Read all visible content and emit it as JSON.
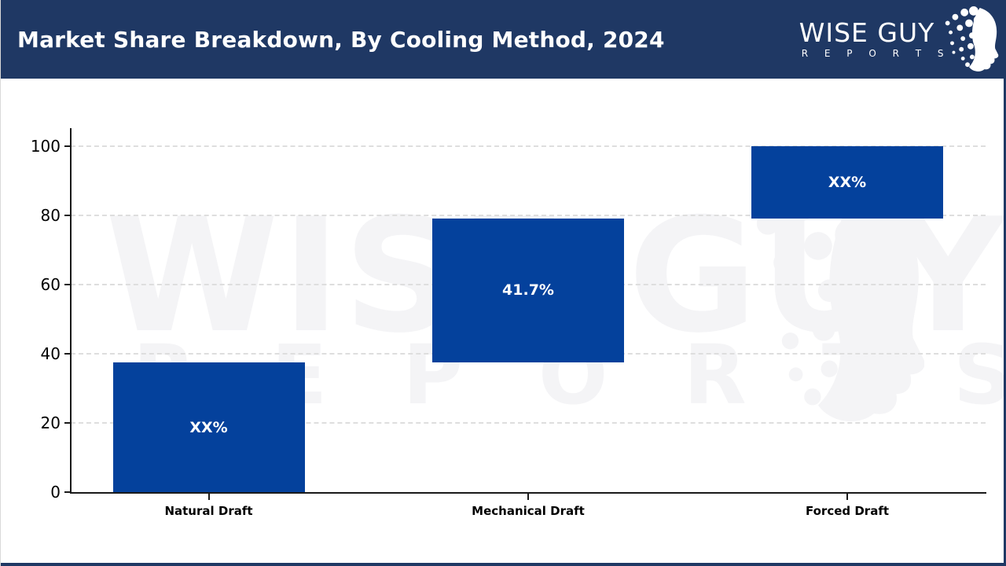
{
  "page": {
    "bg_color": "#ffffff",
    "header_color": "#1f3864",
    "bar_color": "#04419c",
    "watermark_color": "#f4f4f6",
    "grid_color": "#dedede"
  },
  "header": {
    "title": "Market Share Breakdown, By Cooling Method, 2024",
    "logo": {
      "line1": "WISE GUY",
      "line2": "R E P O R T S"
    }
  },
  "watermark": {
    "line1": "WISE GUY",
    "line2": "R E P O R T S"
  },
  "chart_data": {
    "type": "bar",
    "subtype": "waterfall",
    "title": "Market Share Breakdown, By Cooling Method, 2024",
    "categories": [
      "Natural Draft",
      "Mechanical Draft",
      "Forced Draft"
    ],
    "segments": [
      {
        "category": "Natural Draft",
        "start": 0,
        "end": 37.5,
        "label": "XX%"
      },
      {
        "category": "Mechanical Draft",
        "start": 37.5,
        "end": 79.2,
        "label": "41.7%"
      },
      {
        "category": "Forced Draft",
        "start": 79.2,
        "end": 100,
        "label": "XX%"
      }
    ],
    "xlabel": "",
    "ylabel": "",
    "yticks": [
      0,
      20,
      40,
      60,
      80,
      100
    ],
    "ylim": [
      0,
      105
    ],
    "grid": "dashed-horizontal",
    "legend": "none",
    "bar_label_color": "#ffffff"
  }
}
